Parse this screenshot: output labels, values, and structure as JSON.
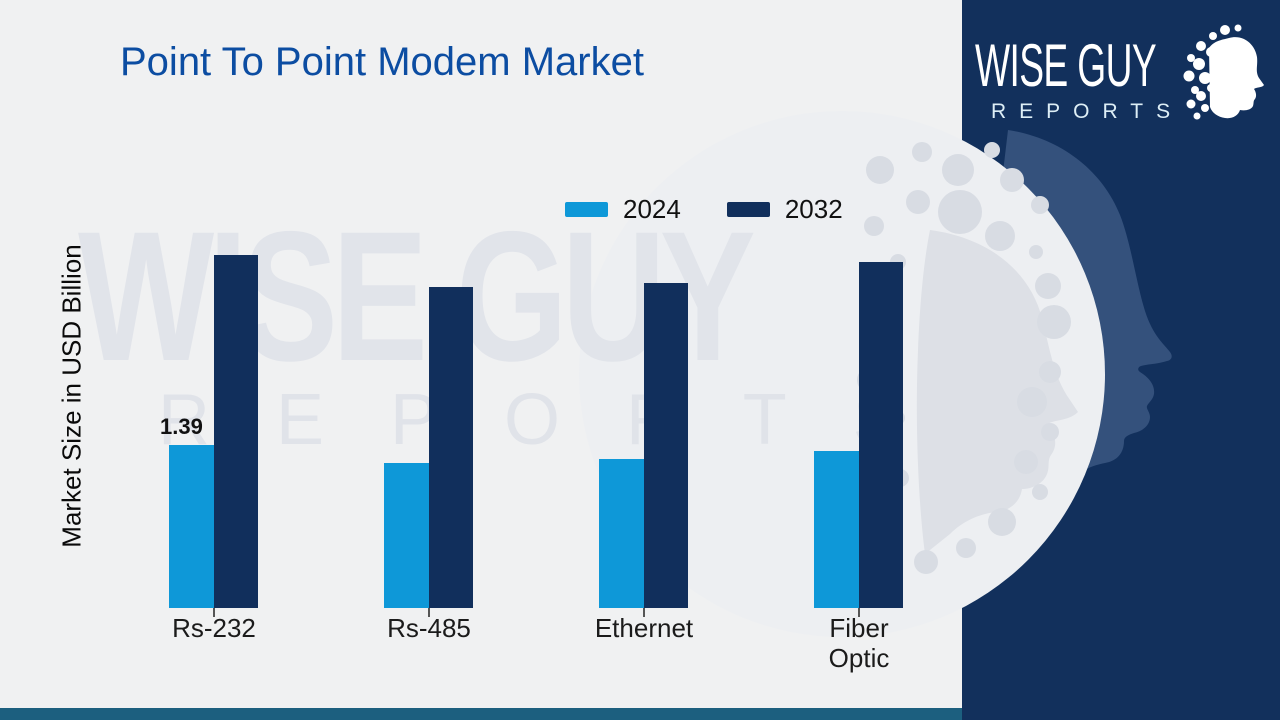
{
  "title": "Point To Point Modem Market",
  "y_axis_label": "Market Size in USD Billion",
  "watermark": {
    "line1": "WISE GUY",
    "line2": "REPORTS"
  },
  "logo": {
    "line1": "WISE GUY",
    "line2": "REPORTS"
  },
  "colors": {
    "background": "#f0f1f2",
    "accent_blue_2024": "#0e98d8",
    "navy_2032": "#112f5c",
    "right_band_navy": "#12305c",
    "silhouette_navy": "#34517c",
    "title_blue": "#0c4da2",
    "bottom_strip_teal": "#1c5f7f",
    "watermark_gray": "#e1e4ea"
  },
  "chart_data": {
    "type": "bar",
    "title": "Point To Point Modem Market",
    "xlabel": "",
    "ylabel": "Market Size in USD Billion",
    "categories": [
      "Rs-232",
      "Rs-485",
      "Ethernet",
      "Fiber Optic"
    ],
    "series": [
      {
        "name": "2024",
        "color": "#0e98d8",
        "values": [
          1.39,
          1.24,
          1.27,
          1.34
        ]
      },
      {
        "name": "2032",
        "color": "#112f5c",
        "values": [
          3.01,
          2.74,
          2.77,
          2.95
        ]
      }
    ],
    "annotations": [
      {
        "text": "1.39",
        "series": "2024",
        "category": "Rs-232"
      }
    ],
    "ylim": [
      0,
      3.5
    ],
    "grid": false,
    "axis_lines": false,
    "legend_position": "top"
  }
}
